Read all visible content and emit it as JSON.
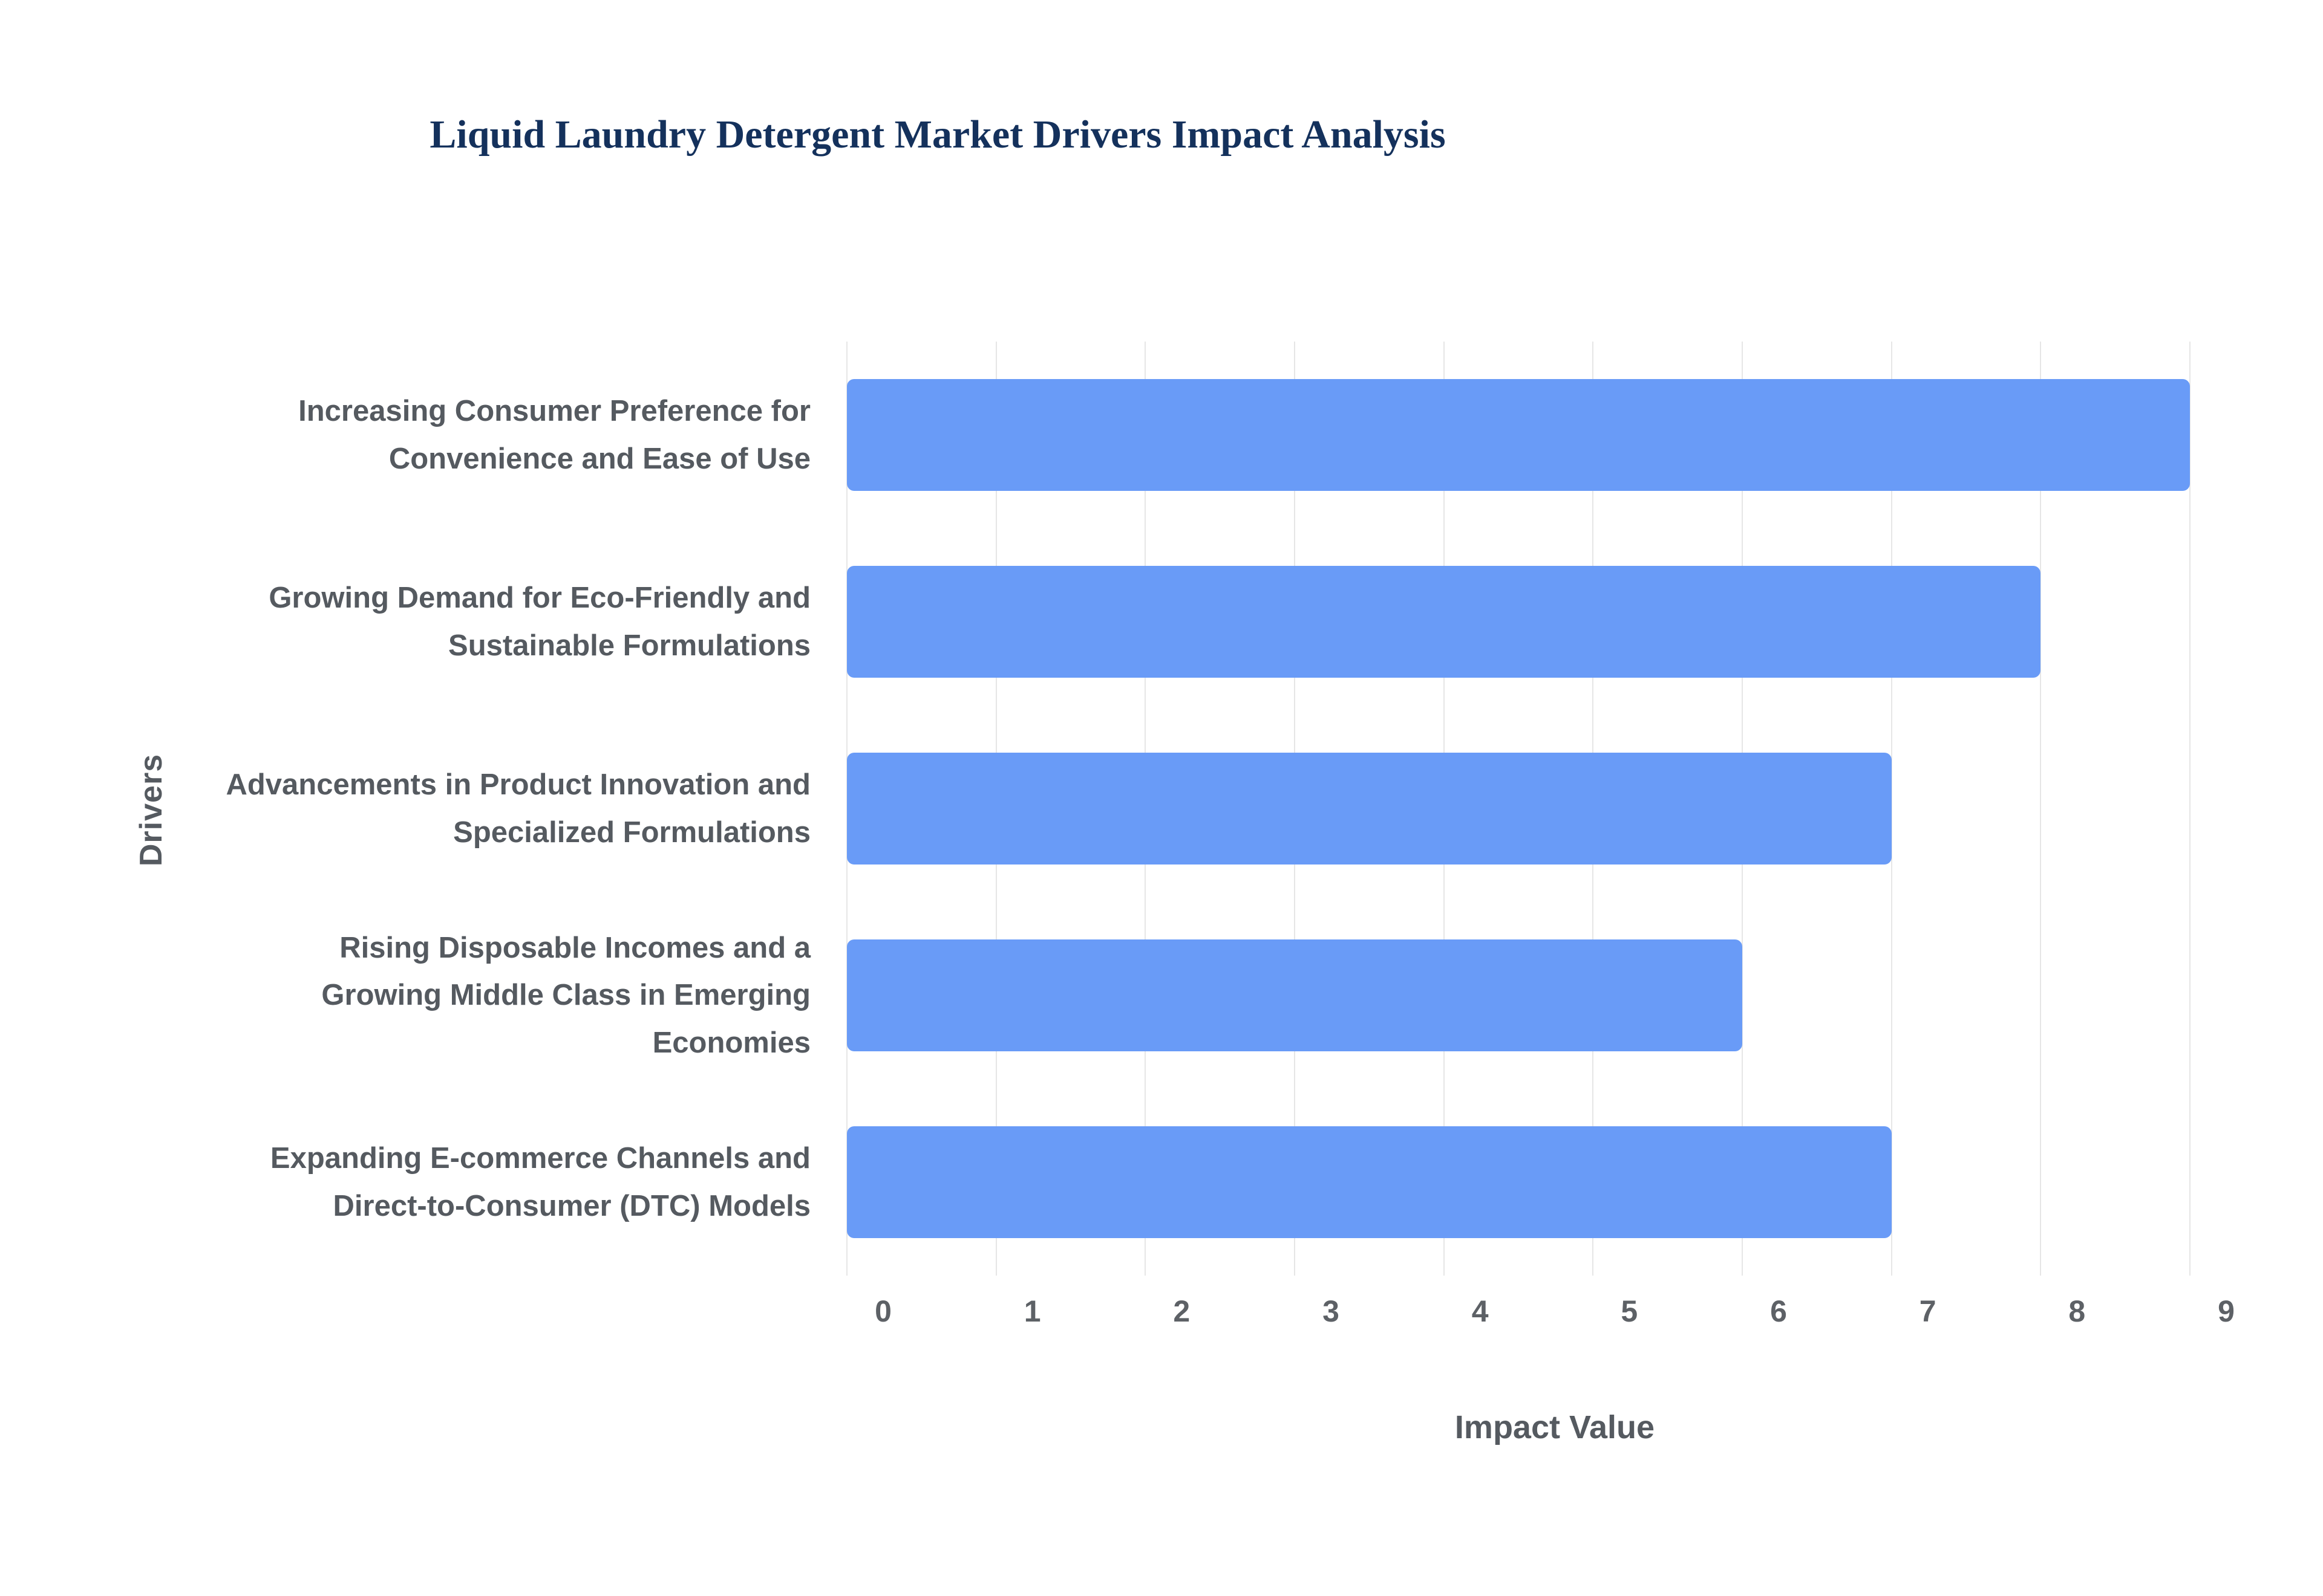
{
  "chart_data": {
    "type": "bar",
    "orientation": "horizontal",
    "title": "Liquid Laundry Detergent Market Drivers Impact Analysis",
    "categories": [
      "Increasing Consumer Preference for Convenience and Ease of Use",
      "Growing Demand for Eco-Friendly and Sustainable Formulations",
      "Advancements in Product Innovation and Specialized Formulations",
      "Rising Disposable Incomes and a Growing Middle Class in Emerging Economies",
      "Expanding E-commerce Channels and Direct-to-Consumer (DTC) Models"
    ],
    "values": [
      9,
      8,
      7,
      6,
      7
    ],
    "xlabel": "Impact Value",
    "ylabel": "Drivers",
    "xlim": [
      0,
      9
    ],
    "xticks": [
      0,
      1,
      2,
      3,
      4,
      5,
      6,
      7,
      8,
      9
    ],
    "grid": true,
    "legend": "none",
    "colors": {
      "bar_fill": "#699bf7",
      "title": "#14315c",
      "axis_label": "#555a60",
      "gridline": "#e6e6e6"
    }
  }
}
